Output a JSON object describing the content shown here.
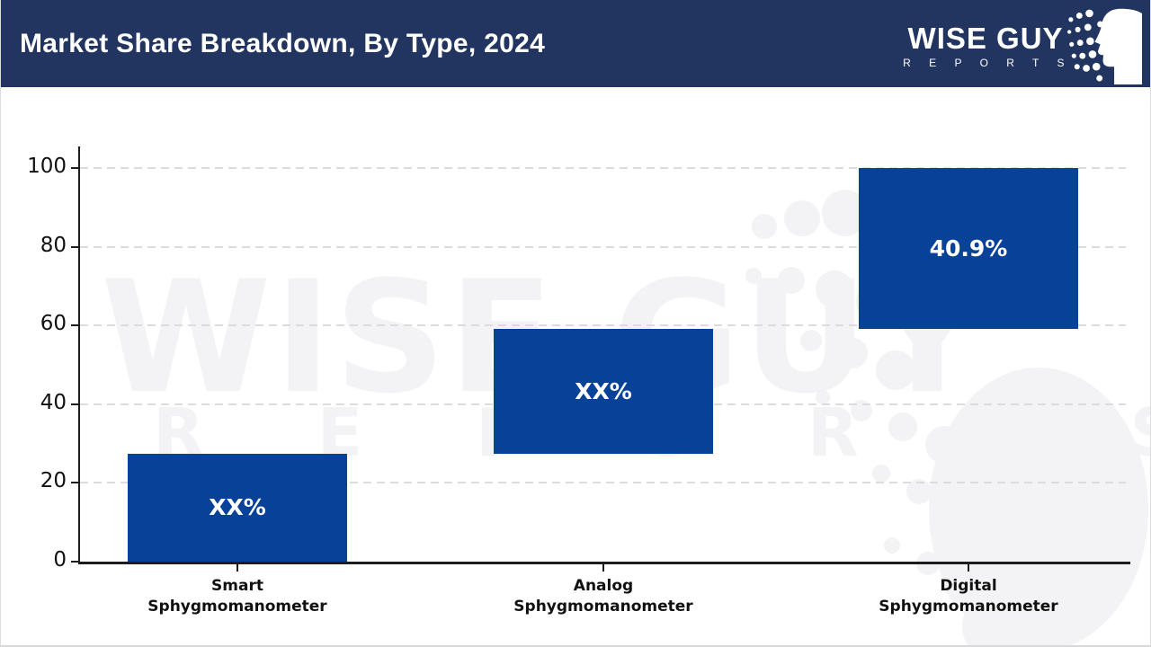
{
  "header": {
    "title": "Market Share Breakdown, By Type, 2024",
    "brand_line1": "WISE GUY",
    "brand_line2": "R E P O R T S"
  },
  "watermark": {
    "line1": "WISE GUY",
    "line2": "R E P O R T S"
  },
  "colors": {
    "header_bg": "#223560",
    "bar": "#084298",
    "axis": "#1c1c1c",
    "grid": "#dcdcdc",
    "watermark": "#f3f3f5",
    "bar_label_text": "#ffffff"
  },
  "chart_data": {
    "type": "bar",
    "variant": "stacked-breakdown-floating-segments",
    "title": "Market Share Breakdown, By Type, 2024",
    "xlabel": "",
    "ylabel": "",
    "ylim": [
      0,
      105
    ],
    "yticks": [
      0,
      20,
      40,
      60,
      80,
      100
    ],
    "grid": "horizontal-dashed",
    "legend": "none",
    "categories": [
      {
        "line1": "Smart",
        "line2": "Sphygmomanometer"
      },
      {
        "line1": "Analog",
        "line2": "Sphygmomanometer"
      },
      {
        "line1": "Digital",
        "line2": "Sphygmomanometer"
      }
    ],
    "segments": [
      {
        "category": "Smart Sphygmomanometer",
        "start": 0,
        "end": 27.4,
        "label": "XX%"
      },
      {
        "category": "Analog Sphygmomanometer",
        "start": 27.4,
        "end": 59.1,
        "label": "XX%"
      },
      {
        "category": "Digital Sphygmomanometer",
        "start": 59.1,
        "end": 100,
        "label": "40.9%",
        "value_pct": 40.9
      }
    ]
  }
}
